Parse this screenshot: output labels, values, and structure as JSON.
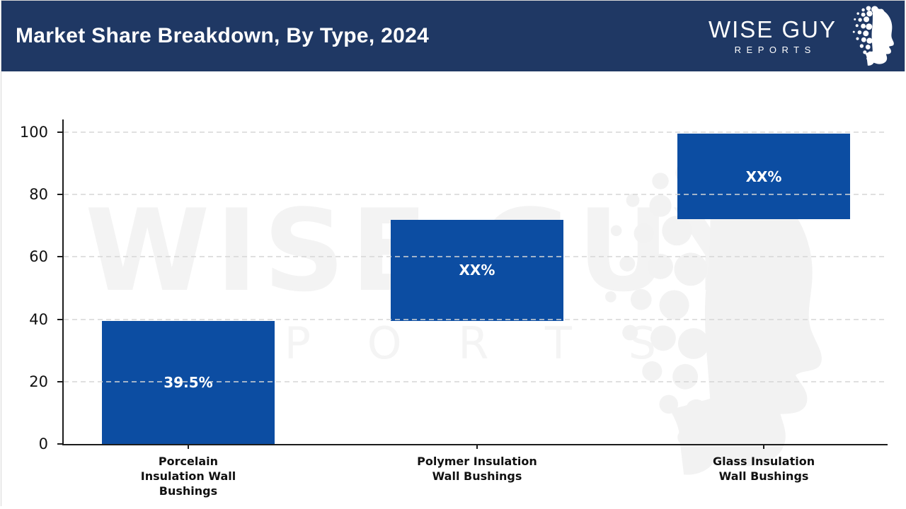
{
  "header": {
    "title": "Market Share Breakdown, By Type, 2024",
    "logo": {
      "line1": "WISE GUY",
      "line2": "REPORTS"
    }
  },
  "watermark": {
    "line1": "WISE GUY",
    "line2": "R E P O R T S"
  },
  "colors": {
    "header_bg": "#1f3864",
    "bar": "#0c4da2",
    "bar_label": "#ffffff",
    "gridline": "#d6d6d6",
    "axis": "#1c1c1c",
    "frame_border": "#d8d8d8",
    "watermark": "#f2f2f2"
  },
  "chart_data": {
    "type": "bar",
    "subtype": "waterfall",
    "title": "Market Share Breakdown, By Type, 2024",
    "categories": [
      "Porcelain\nInsulation Wall\nBushings",
      "Polymer Insulation\nWall Bushings",
      "Glass Insulation\nWall Bushings"
    ],
    "bars": [
      {
        "label": "39.5%",
        "base": 0,
        "top": 39.5
      },
      {
        "label": "XX%",
        "base": 39.5,
        "top": 72
      },
      {
        "label": "XX%",
        "base": 72,
        "top": 99.5
      }
    ],
    "yticks": [
      0,
      20,
      40,
      60,
      80,
      100
    ],
    "ylim": [
      0,
      104
    ],
    "xlabel": "",
    "ylabel": "",
    "grid": "dashed-horizontal",
    "legend": "none"
  }
}
